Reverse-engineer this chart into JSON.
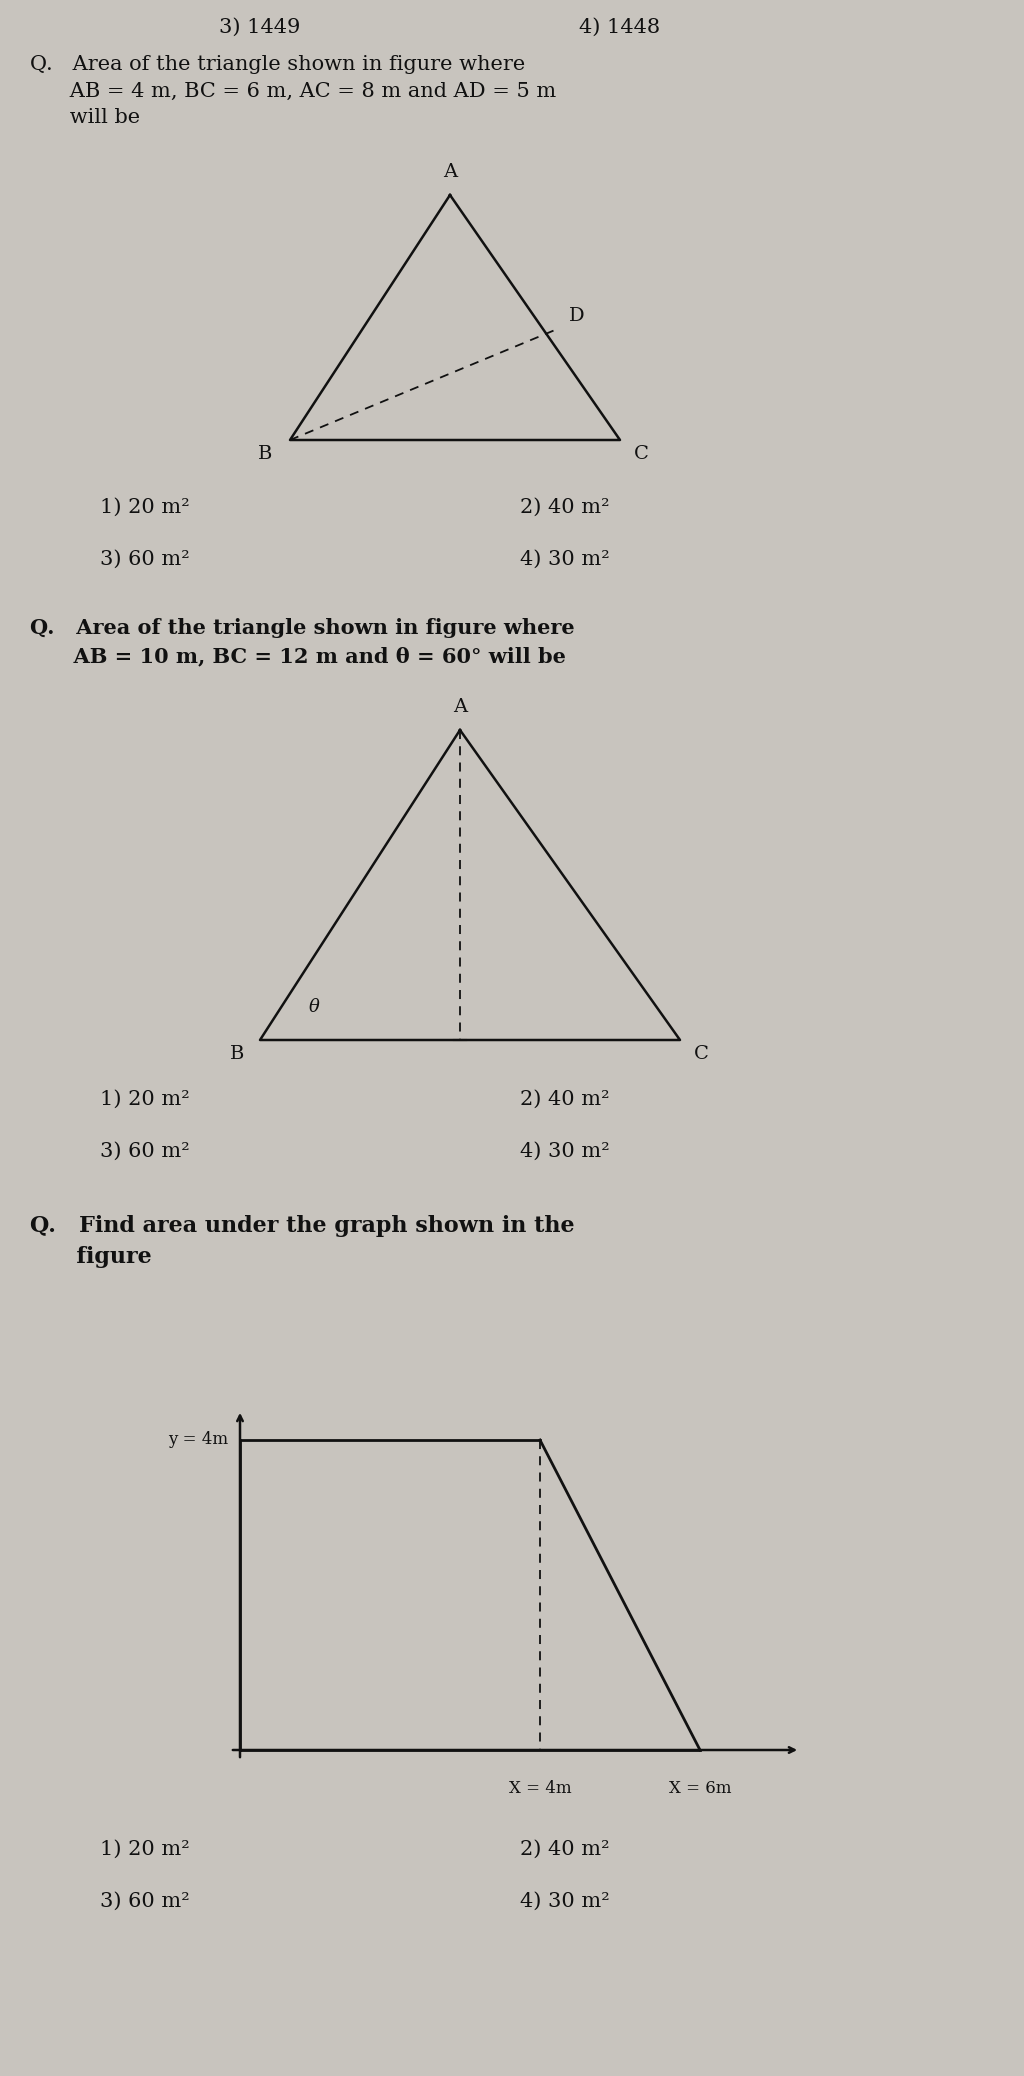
{
  "bg_color": "#c8c4be",
  "text_color": "#111111",
  "header_left": "3) 1449",
  "header_right": "4) 1448",
  "q1_text": "Q.   Area of the triangle shown in figure where\n      AB = 4 m, BC = 6 m, AC = 8 m and AD = 5 m\n      will be",
  "q2_text": "Q.   Area of the triangle shown in figure where\n      AB = 10 m, BC = 12 m and θ = 60° will be",
  "q3_text": "Q.   Find area under the graph shown in the\n      figure",
  "options_left": [
    "1) 20 m²",
    "3) 60 m²"
  ],
  "options_right": [
    "2) 40 m²",
    "4) 30 m²"
  ],
  "fontsize_header": 15,
  "fontsize_q": 15,
  "fontsize_opt": 15,
  "fontsize_label": 13
}
